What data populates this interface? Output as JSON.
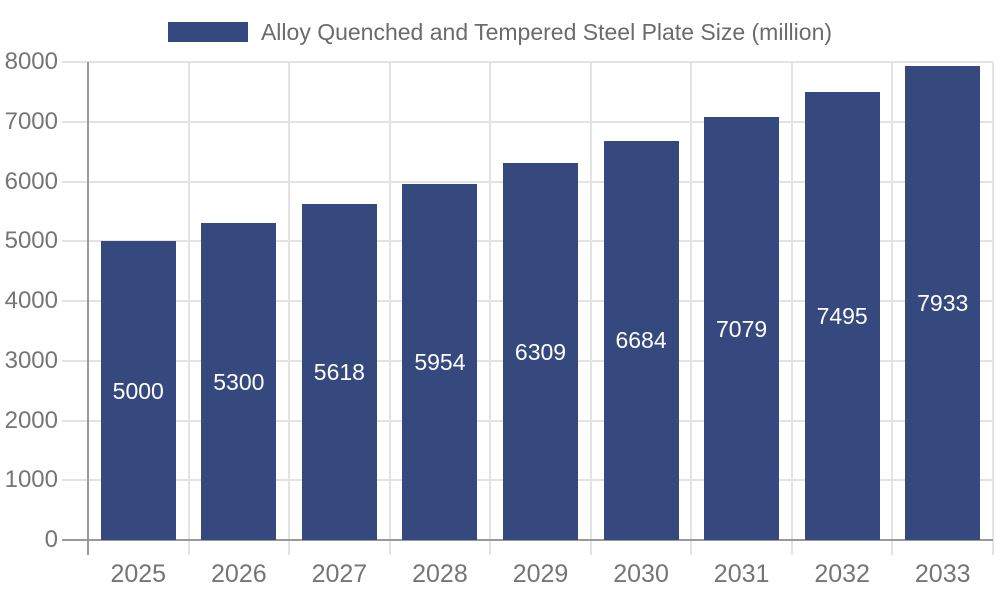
{
  "legend": {
    "label": "Alloy Quenched and Tempered Steel Plate Size (million)"
  },
  "chart_data": {
    "type": "bar",
    "title": "",
    "xlabel": "",
    "ylabel": "",
    "categories": [
      "2025",
      "2026",
      "2027",
      "2028",
      "2029",
      "2030",
      "2031",
      "2032",
      "2033"
    ],
    "series": [
      {
        "name": "Alloy Quenched and Tempered Steel Plate Size (million)",
        "values": [
          5000,
          5300,
          5618,
          5954,
          6309,
          6684,
          7079,
          7495,
          7933
        ]
      }
    ],
    "value_labels_shown": true,
    "ylim": [
      0,
      8000
    ],
    "yticks": [
      0,
      1000,
      2000,
      3000,
      4000,
      5000,
      6000,
      7000,
      8000
    ],
    "grid": true,
    "legend_position": "top-center",
    "colors": {
      "bar": "#36497F",
      "bar_value_label": "#ffffff",
      "grid_line": "#e3e3e3",
      "axis_line": "#9a9a9a",
      "tick_label": "#757575",
      "legend_text": "#6b6b6b",
      "background": "#ffffff"
    }
  }
}
